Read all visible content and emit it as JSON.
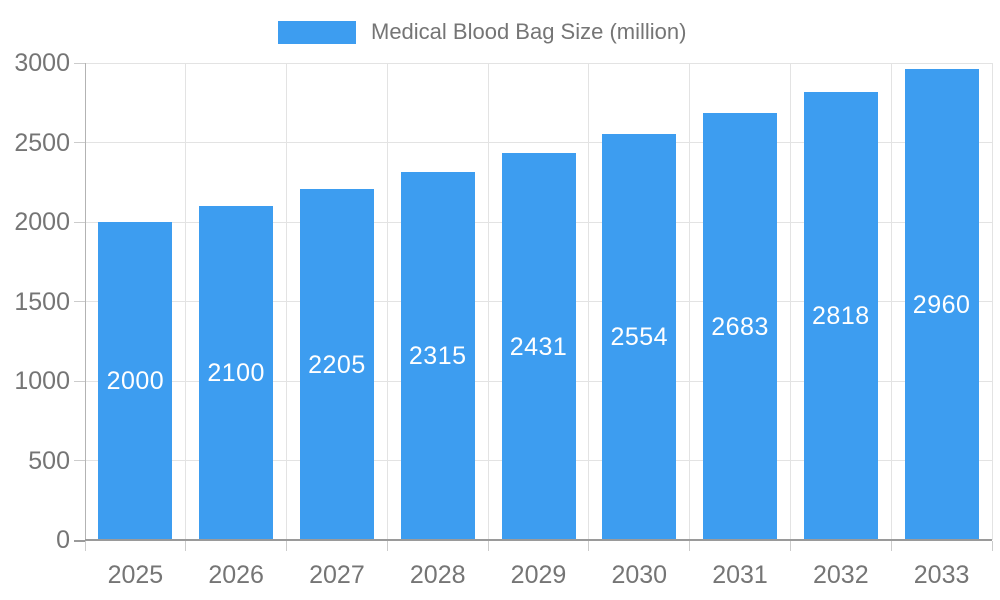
{
  "chart_data": {
    "type": "bar",
    "title": "Medical Blood Bag Size (million)",
    "categories": [
      "2025",
      "2026",
      "2027",
      "2028",
      "2029",
      "2030",
      "2031",
      "2032",
      "2033"
    ],
    "series": [
      {
        "name": "Medical Blood Bag Size (million)",
        "values": [
          2000,
          2100,
          2205,
          2315,
          2431,
          2554,
          2683,
          2818,
          2960
        ]
      }
    ],
    "bar_value_labels": [
      "2000",
      "2100",
      "2205",
      "2315",
      "2431",
      "2554",
      "2683",
      "2818",
      "2960"
    ],
    "xlabel": "",
    "ylabel": "",
    "ylim": [
      0,
      3000
    ],
    "y_ticks": [
      0,
      500,
      1000,
      1500,
      2000,
      2500,
      3000
    ],
    "y_tick_labels": [
      "0",
      "500",
      "1000",
      "1500",
      "2000",
      "2500",
      "3000"
    ],
    "grid": true,
    "legend_position": "top-center"
  },
  "legend": {
    "label": "Medical Blood Bag Size (million)"
  },
  "colors": {
    "bar": "#3d9df0",
    "bar_label_text": "#ffffff",
    "axis_text": "#757575",
    "legend_text": "#757575",
    "gridline": "#e3e3e3",
    "y_axis_line": "#b3b3b3",
    "x_axis_line": "#9a9a9a",
    "tick": "#cccccc"
  }
}
